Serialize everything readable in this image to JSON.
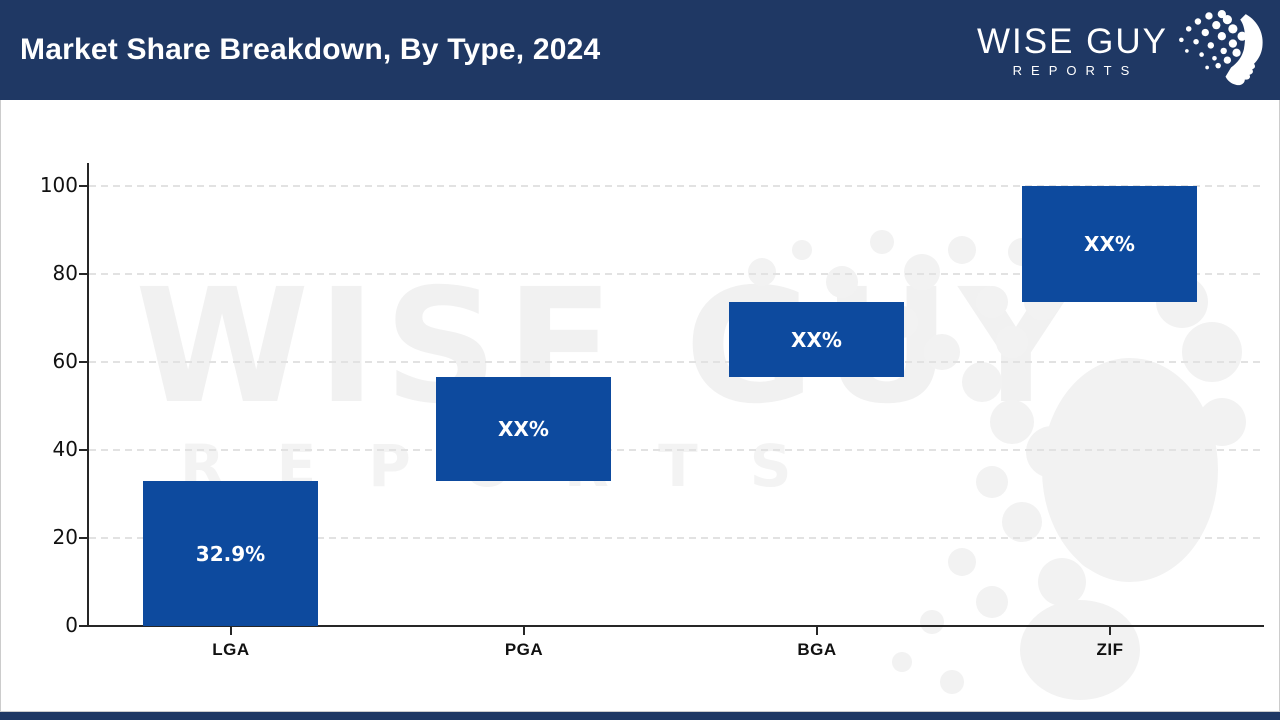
{
  "header": {
    "title": "Market Share Breakdown, By Type, 2024",
    "bg_color": "#1F3864",
    "logo_line1": "WISE GUY",
    "logo_line2": "REPORTS"
  },
  "watermark": {
    "line1": "WISE GUY",
    "line2": "REPORTS"
  },
  "icons": {
    "logo_face": "dotted-head-profile-icon"
  },
  "chart_data": {
    "type": "bar",
    "subtype": "floating-waterfall",
    "title": "Market Share Breakdown, By Type, 2024",
    "categories": [
      "LGA",
      "PGA",
      "BGA",
      "ZIF"
    ],
    "series": [
      {
        "name": "Market share (%)",
        "segments": [
          {
            "category": "LGA",
            "start": 0,
            "end": 32.9,
            "label": "32.9%"
          },
          {
            "category": "PGA",
            "start": 32.9,
            "end": 56.6,
            "label": "XX%"
          },
          {
            "category": "BGA",
            "start": 56.6,
            "end": 73.6,
            "label": "XX%"
          },
          {
            "category": "ZIF",
            "start": 73.6,
            "end": 100,
            "label": "XX%"
          }
        ]
      }
    ],
    "y_ticks": [
      0,
      20,
      40,
      60,
      80,
      100
    ],
    "ylim": [
      0,
      100
    ],
    "xlabel": "",
    "ylabel": "",
    "grid": "horizontal-dashed",
    "legend": "none",
    "bar_color": "#0D4A9E",
    "bar_label_color": "#FFFFFF"
  },
  "colors": {
    "header_bg": "#1F3864",
    "footer_bg": "#1F3864",
    "bar": "#0D4A9E",
    "grid": "#E2E2E2",
    "axis": "#262626",
    "frame_border": "#CCCCCC",
    "watermark": "#F1F1F1"
  }
}
